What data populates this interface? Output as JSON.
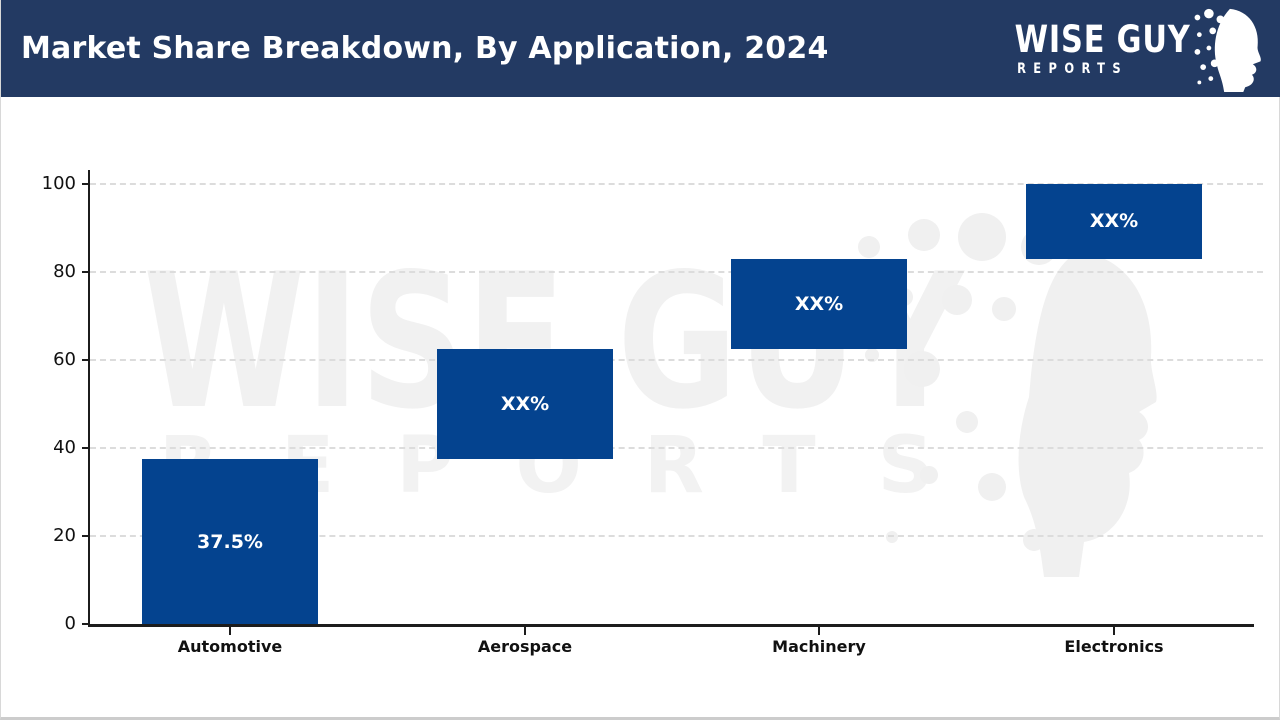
{
  "header": {
    "title": "Market Share Breakdown, By Application, 2024",
    "logo": {
      "line1": "WISE GUY",
      "line2": "REPORTS"
    }
  },
  "watermark": {
    "line1": "WISE GUY",
    "line2": "REPORTS"
  },
  "chart_data": {
    "type": "bar",
    "subtype": "waterfall-floating-bars",
    "title": "Market Share Breakdown, By Application, 2024",
    "categories": [
      "Automotive",
      "Aerospace",
      "Machinery",
      "Electronics"
    ],
    "series": [
      {
        "name": "Market share",
        "segments": [
          {
            "category": "Automotive",
            "start": 0,
            "end": 37.5,
            "label": "37.5%"
          },
          {
            "category": "Aerospace",
            "start": 37.5,
            "end": 62.5,
            "label": "XX%"
          },
          {
            "category": "Machinery",
            "start": 62.5,
            "end": 83,
            "label": "XX%"
          },
          {
            "category": "Electronics",
            "start": 83,
            "end": 100,
            "label": "XX%"
          }
        ]
      }
    ],
    "xlabel": "",
    "ylabel": "",
    "ylim": [
      0,
      100
    ],
    "yticks": [
      0,
      20,
      40,
      60,
      80,
      100
    ],
    "grid": "horizontal-dashed",
    "legend": "none",
    "colors": {
      "bar": "#04438f",
      "bar_label": "#ffffff",
      "header_bg": "#233a63",
      "axis": "#1c1c1c",
      "grid": "#dcdcdc",
      "watermark": "#f1f1f1"
    }
  }
}
